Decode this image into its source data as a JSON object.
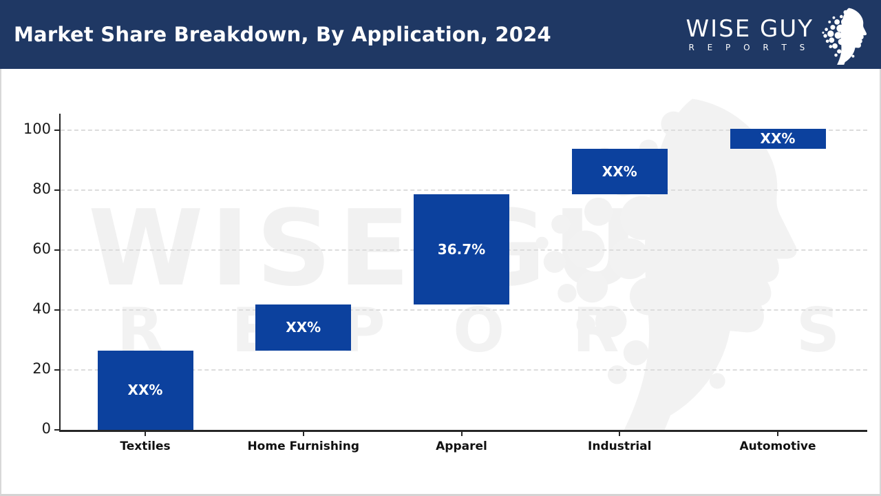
{
  "header": {
    "logo": {
      "line1": "WISE GUY",
      "line2": "R E P O R T S"
    },
    "bg_color": "#1f3864"
  },
  "watermark": {
    "line1": "WISE GUY",
    "line2": "R E P O R T S"
  },
  "chart_data": {
    "type": "bar",
    "variant": "floating-waterfall",
    "title": "Market Share Breakdown, By Application, 2024",
    "categories": [
      "Textiles",
      "Home Furnishing",
      "Apparel",
      "Industrial",
      "Automotive"
    ],
    "series": [
      {
        "name": "Market Share",
        "segments": [
          {
            "category": "Textiles",
            "start": 0,
            "end": 26.5,
            "label": "XX%"
          },
          {
            "category": "Home Furnishing",
            "start": 26.5,
            "end": 41.8,
            "label": "XX%"
          },
          {
            "category": "Apparel",
            "start": 41.8,
            "end": 78.5,
            "label": "36.7%"
          },
          {
            "category": "Industrial",
            "start": 78.5,
            "end": 93.7,
            "label": "XX%"
          },
          {
            "category": "Automotive",
            "start": 93.7,
            "end": 100.5,
            "label": "XX%"
          }
        ]
      }
    ],
    "xlabel": "",
    "ylabel": "",
    "ylim": [
      0,
      105.5
    ],
    "yticks": [
      0,
      20,
      40,
      60,
      80,
      100
    ],
    "grid": "horizontal-dashed",
    "legend": "none",
    "bar_color": "#0c419e",
    "bar_label_color": "#ffffff",
    "axis_color": "#262626",
    "grid_color": "#dcdcdc",
    "watermark_color": "#f2f2f2"
  }
}
